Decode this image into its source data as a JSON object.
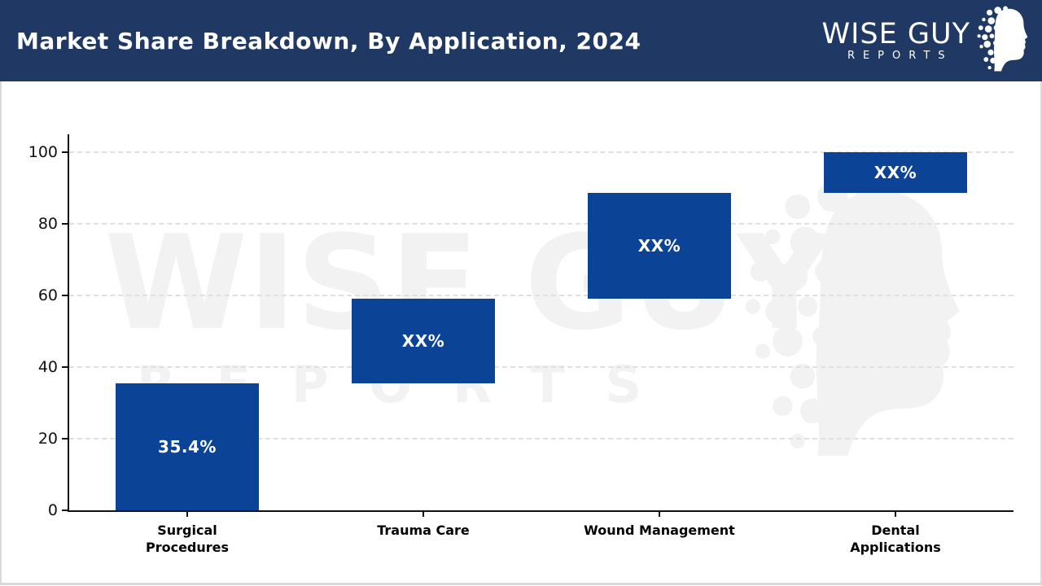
{
  "header": {
    "title": "Market Share Breakdown, By Application, 2024",
    "logo": {
      "line1": "WISE GUY",
      "line2": "REPORTS"
    }
  },
  "watermark": {
    "line1": "WISE GUY",
    "line2": "REPORTS"
  },
  "chart_data": {
    "type": "bar",
    "subtype": "waterfall",
    "title": "Market Share Breakdown, By Application, 2024",
    "categories": [
      [
        "Surgical",
        "Procedures"
      ],
      [
        "Trauma Care"
      ],
      [
        "Wound Management"
      ],
      [
        "Dental",
        "Applications"
      ]
    ],
    "segments": [
      {
        "category": "Surgical Procedures",
        "start": 0,
        "end": 35.4,
        "label": "35.4%"
      },
      {
        "category": "Trauma Care",
        "start": 35.4,
        "end": 59.1,
        "label": "XX%"
      },
      {
        "category": "Wound Management",
        "start": 59.1,
        "end": 88.7,
        "label": "XX%"
      },
      {
        "category": "Dental Applications",
        "start": 88.7,
        "end": 100,
        "label": "XX%"
      }
    ],
    "ylim": [
      0,
      100
    ],
    "yticks": [
      0,
      20,
      40,
      60,
      80,
      100
    ],
    "xlabel": "",
    "ylabel": "",
    "legend": "none",
    "grid": "dashed-horizontal",
    "bar_color": "#0b4396",
    "bar_label_color": "#ffffff",
    "grid_color": "#e0e0e0",
    "axis_color": "#111111",
    "header_color": "#203864",
    "watermark_color": "#f2f2f2"
  }
}
